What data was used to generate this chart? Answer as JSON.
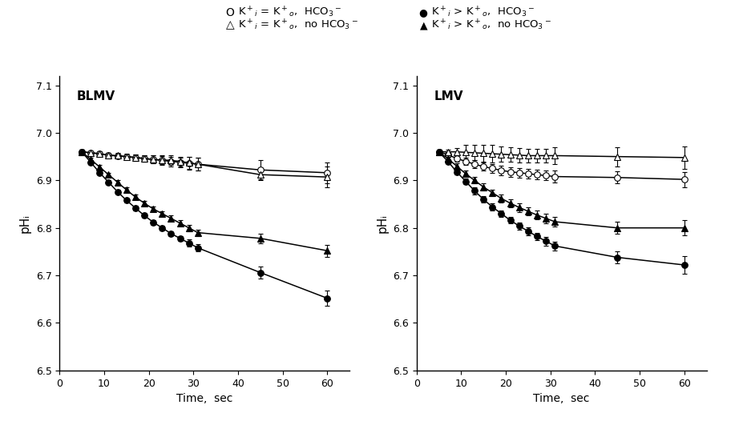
{
  "BLMV": {
    "label": "BLMV",
    "open_circle": {
      "x": [
        5,
        7,
        9,
        11,
        13,
        15,
        17,
        19,
        21,
        23,
        25,
        27,
        29,
        31,
        45,
        60
      ],
      "y": [
        6.96,
        6.958,
        6.956,
        6.953,
        6.951,
        6.95,
        6.948,
        6.946,
        6.944,
        6.942,
        6.94,
        6.938,
        6.936,
        6.934,
        6.922,
        6.916
      ],
      "yerr": [
        0.004,
        0.004,
        0.004,
        0.004,
        0.005,
        0.005,
        0.007,
        0.007,
        0.008,
        0.009,
        0.01,
        0.01,
        0.014,
        0.014,
        0.02,
        0.022
      ]
    },
    "open_triangle": {
      "x": [
        5,
        7,
        9,
        11,
        13,
        15,
        17,
        19,
        21,
        23,
        25,
        27,
        29,
        31,
        45,
        60
      ],
      "y": [
        6.96,
        6.958,
        6.956,
        6.953,
        6.952,
        6.95,
        6.948,
        6.946,
        6.944,
        6.943,
        6.942,
        6.94,
        6.937,
        6.934,
        6.912,
        6.907
      ],
      "yerr": [
        0.004,
        0.004,
        0.005,
        0.005,
        0.005,
        0.006,
        0.007,
        0.007,
        0.008,
        0.009,
        0.01,
        0.01,
        0.013,
        0.014,
        0.012,
        0.022
      ]
    },
    "filled_circle": {
      "x": [
        5,
        7,
        9,
        11,
        13,
        15,
        17,
        19,
        21,
        23,
        25,
        27,
        29,
        31,
        45,
        60
      ],
      "y": [
        6.96,
        6.938,
        6.916,
        6.896,
        6.876,
        6.858,
        6.842,
        6.826,
        6.812,
        6.8,
        6.788,
        6.778,
        6.768,
        6.758,
        6.706,
        6.652
      ],
      "yerr": [
        0.004,
        0.004,
        0.004,
        0.004,
        0.004,
        0.004,
        0.005,
        0.005,
        0.005,
        0.005,
        0.005,
        0.005,
        0.008,
        0.008,
        0.012,
        0.016
      ]
    },
    "filled_triangle": {
      "x": [
        5,
        7,
        9,
        11,
        13,
        15,
        17,
        19,
        21,
        23,
        25,
        27,
        29,
        31,
        45,
        60
      ],
      "y": [
        6.96,
        6.944,
        6.928,
        6.912,
        6.896,
        6.88,
        6.865,
        6.852,
        6.84,
        6.83,
        6.82,
        6.81,
        6.8,
        6.79,
        6.778,
        6.752
      ],
      "yerr": [
        0.004,
        0.004,
        0.004,
        0.004,
        0.004,
        0.005,
        0.005,
        0.005,
        0.005,
        0.005,
        0.006,
        0.006,
        0.007,
        0.007,
        0.01,
        0.013
      ]
    }
  },
  "LMV": {
    "label": "LMV",
    "open_circle": {
      "x": [
        5,
        7,
        9,
        11,
        13,
        15,
        17,
        19,
        21,
        23,
        25,
        27,
        29,
        31,
        45,
        60
      ],
      "y": [
        6.96,
        6.954,
        6.946,
        6.94,
        6.934,
        6.929,
        6.925,
        6.921,
        6.918,
        6.916,
        6.914,
        6.912,
        6.91,
        6.908,
        6.906,
        6.902
      ],
      "yerr": [
        0.004,
        0.004,
        0.006,
        0.007,
        0.008,
        0.009,
        0.01,
        0.01,
        0.01,
        0.01,
        0.01,
        0.01,
        0.01,
        0.012,
        0.013,
        0.016
      ]
    },
    "open_triangle": {
      "x": [
        5,
        7,
        9,
        11,
        13,
        15,
        17,
        19,
        21,
        23,
        25,
        27,
        29,
        31,
        45,
        60
      ],
      "y": [
        6.96,
        6.96,
        6.96,
        6.959,
        6.958,
        6.957,
        6.956,
        6.955,
        6.954,
        6.953,
        6.952,
        6.952,
        6.952,
        6.952,
        6.95,
        6.948
      ],
      "yerr": [
        0.004,
        0.005,
        0.008,
        0.015,
        0.016,
        0.018,
        0.018,
        0.016,
        0.015,
        0.015,
        0.015,
        0.015,
        0.015,
        0.018,
        0.02,
        0.024
      ]
    },
    "filled_circle": {
      "x": [
        5,
        7,
        9,
        11,
        13,
        15,
        17,
        19,
        21,
        23,
        25,
        27,
        29,
        31,
        45,
        60
      ],
      "y": [
        6.96,
        6.94,
        6.918,
        6.898,
        6.878,
        6.86,
        6.844,
        6.83,
        6.816,
        6.804,
        6.793,
        6.782,
        6.772,
        6.762,
        6.738,
        6.722
      ],
      "yerr": [
        0.004,
        0.004,
        0.006,
        0.006,
        0.007,
        0.007,
        0.007,
        0.007,
        0.007,
        0.007,
        0.008,
        0.008,
        0.009,
        0.009,
        0.013,
        0.018
      ]
    },
    "filled_triangle": {
      "x": [
        5,
        7,
        9,
        11,
        13,
        15,
        17,
        19,
        21,
        23,
        25,
        27,
        29,
        31,
        45,
        60
      ],
      "y": [
        6.96,
        6.946,
        6.93,
        6.914,
        6.9,
        6.886,
        6.874,
        6.862,
        6.852,
        6.843,
        6.835,
        6.827,
        6.82,
        6.813,
        6.8,
        6.8
      ],
      "yerr": [
        0.004,
        0.004,
        0.006,
        0.006,
        0.007,
        0.007,
        0.007,
        0.008,
        0.008,
        0.009,
        0.009,
        0.009,
        0.01,
        0.01,
        0.013,
        0.016
      ]
    }
  },
  "ylim": [
    6.5,
    7.12
  ],
  "xlim": [
    0,
    65
  ],
  "yticks": [
    6.5,
    6.6,
    6.7,
    6.8,
    6.9,
    7.0,
    7.1
  ],
  "xticks": [
    0,
    10,
    20,
    30,
    40,
    50,
    60
  ],
  "xlabel": "Time,  sec",
  "ylabel": "pHᵢ",
  "bg_color": "#ffffff"
}
